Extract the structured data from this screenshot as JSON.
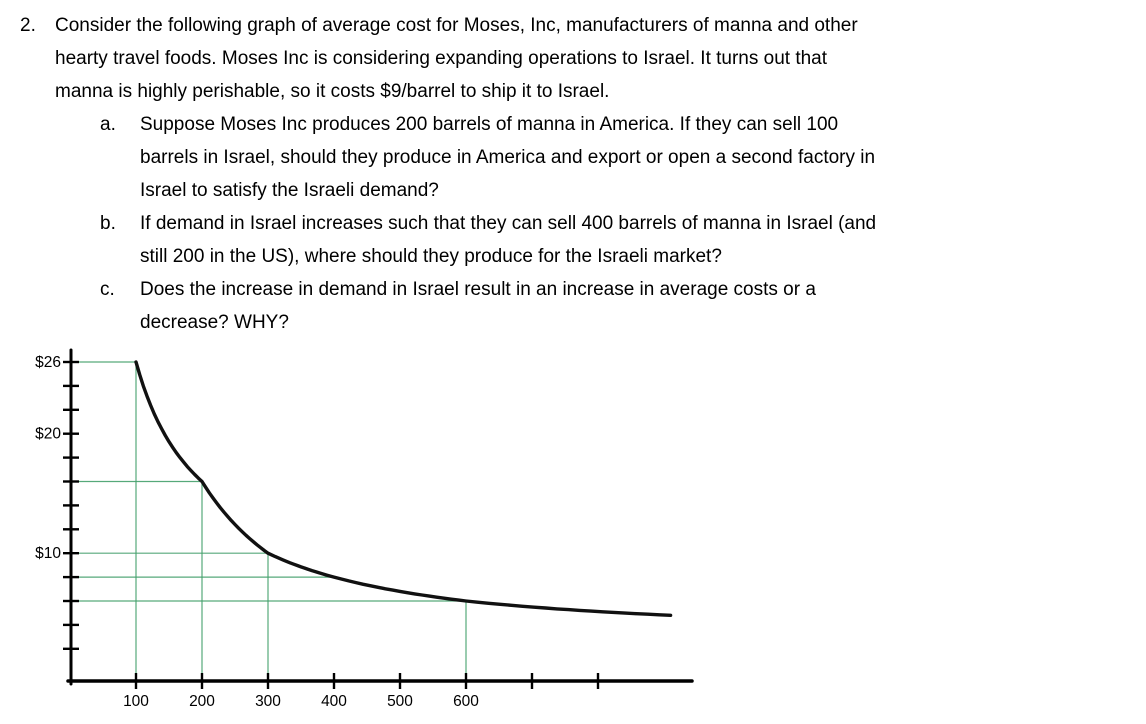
{
  "problem": {
    "number": "2.",
    "lines": [
      "Consider the following graph of average cost for Moses, Inc, manufacturers of manna and other",
      "hearty travel foods. Moses Inc is considering expanding operations to Israel. It turns out that",
      "manna is highly perishable, so it costs $9/barrel to ship it to Israel."
    ],
    "items": [
      {
        "label": "a.",
        "lines": [
          "Suppose Moses Inc produces 200 barrels of manna in America. If they can sell 100",
          "barrels in Israel, should they produce in America and export or open a second factory in",
          "Israel to satisfy the Israeli demand?"
        ]
      },
      {
        "label": "b.",
        "lines": [
          "If demand in Israel increases such that they can sell 400 barrels of manna in Israel (and",
          "still 200 in the US), where should they produce for the Israeli market?"
        ]
      },
      {
        "label": "c.",
        "lines": [
          "Does the increase in demand in Israel result in an increase in average costs or a",
          "decrease? WHY?"
        ]
      }
    ]
  },
  "chart_data": {
    "type": "line",
    "description": "Average cost curve for Moses, Inc (downward-sloping hyperbolic AC curve)",
    "xlim": [
      0,
      940
    ],
    "ylim": [
      0,
      28
    ],
    "grid": false,
    "x_ticks": [
      100,
      200,
      300,
      400,
      500,
      600,
      700,
      800
    ],
    "x_tick_labels": [
      "100",
      "200",
      "300",
      "400",
      "500",
      "600",
      "",
      ""
    ],
    "y_tick_step": 2,
    "y_tick_range": [
      2,
      26
    ],
    "y_axis_labels": [
      {
        "value": 26,
        "label": "$26"
      },
      {
        "value": 20,
        "label": "$20"
      },
      {
        "value": 10,
        "label": "$10"
      }
    ],
    "series": [
      {
        "name": "average-cost-curve",
        "points": [
          [
            100,
            26
          ],
          [
            200,
            16
          ],
          [
            300,
            10
          ],
          [
            400,
            8
          ],
          [
            600,
            6
          ],
          [
            910,
            4.8
          ]
        ]
      }
    ],
    "guidelines": [
      {
        "q": 100,
        "ac": 26,
        "h": true,
        "v": true
      },
      {
        "q": 200,
        "ac": 16,
        "h": true,
        "v": true
      },
      {
        "q": 300,
        "ac": 10,
        "h": true,
        "v": true
      },
      {
        "q": 400,
        "ac": 8,
        "h": true,
        "v": false
      },
      {
        "q": 600,
        "ac": 6,
        "h": true,
        "v": true
      }
    ],
    "colors": {
      "curve": "#111111",
      "guideline": "#44a06c",
      "axis": "#000000"
    }
  }
}
